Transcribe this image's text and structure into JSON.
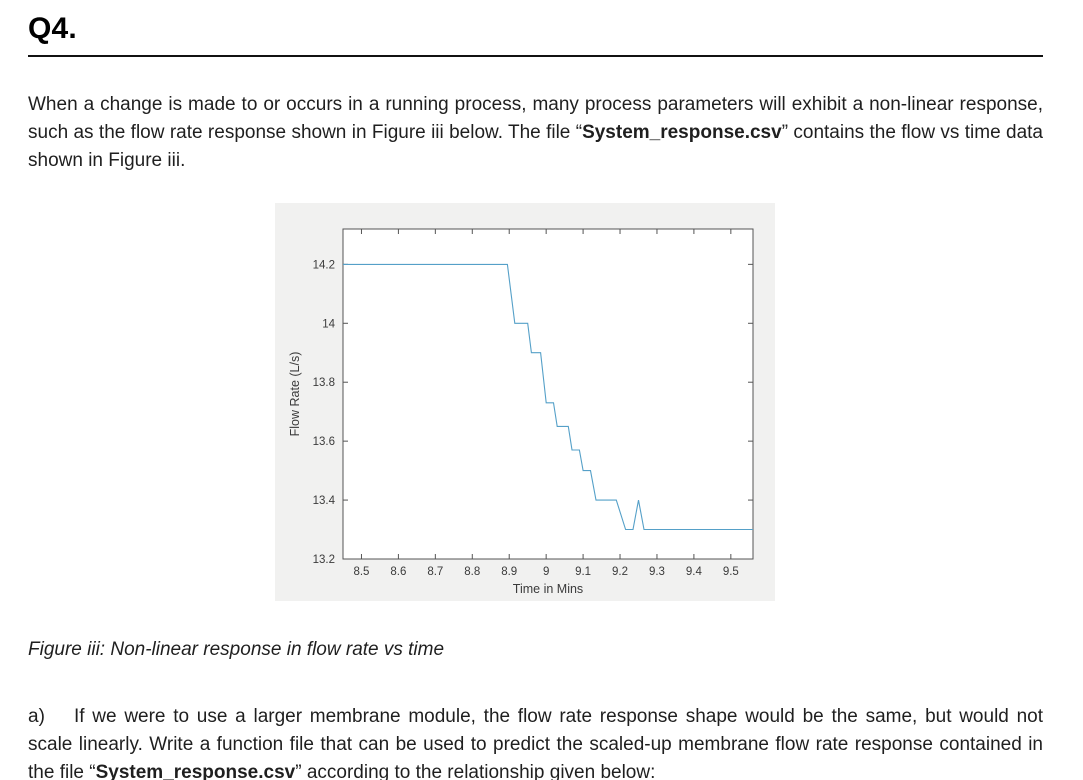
{
  "page": {
    "heading": "Q4.",
    "intro": {
      "seg1": "When a change is made to or occurs in a running process, many process parameters will exhibit a non-linear response, such as the flow rate response shown in Figure iii below. The file “",
      "file": "System_response.csv",
      "seg2": "” contains the flow vs time data shown in Figure iii."
    },
    "caption": "Figure iii: Non-linear response in flow rate vs time",
    "part_a": {
      "label": "a)",
      "seg1": "If we were to use a larger membrane module, the flow rate response shape would be the same, but would not scale linearly. Write a function file that can be used to predict the scaled-up membrane flow rate response contained in the file “",
      "file": "System_response.csv",
      "seg2": "” according to the relationship given below:"
    }
  },
  "chart_data": {
    "type": "line",
    "title": "",
    "xlabel": "Time in Mins",
    "ylabel": "Flow Rate (L/s)",
    "xlim": [
      8.45,
      9.56
    ],
    "ylim": [
      13.2,
      14.32
    ],
    "xticks": [
      8.5,
      8.6,
      8.7,
      8.8,
      8.9,
      9,
      9.1,
      9.2,
      9.3,
      9.4,
      9.5
    ],
    "yticks": [
      13.2,
      13.4,
      13.6,
      13.8,
      14,
      14.2
    ],
    "grid": false,
    "legend": "none",
    "line_color": "#55a0c8",
    "axis_color": "#545454",
    "plot_bg": "#ffffff",
    "figure_bg": "#f1f1f0",
    "series": [
      {
        "name": "flow rate response",
        "points": [
          [
            8.45,
            14.2
          ],
          [
            8.895,
            14.2
          ],
          [
            8.915,
            14.0
          ],
          [
            8.95,
            14.0
          ],
          [
            8.96,
            13.9
          ],
          [
            8.985,
            13.9
          ],
          [
            9.0,
            13.73
          ],
          [
            9.02,
            13.73
          ],
          [
            9.03,
            13.65
          ],
          [
            9.06,
            13.65
          ],
          [
            9.07,
            13.57
          ],
          [
            9.09,
            13.57
          ],
          [
            9.1,
            13.5
          ],
          [
            9.12,
            13.5
          ],
          [
            9.135,
            13.4
          ],
          [
            9.19,
            13.4
          ],
          [
            9.215,
            13.3
          ],
          [
            9.235,
            13.3
          ],
          [
            9.25,
            13.4
          ],
          [
            9.265,
            13.3
          ],
          [
            9.56,
            13.3
          ]
        ]
      }
    ]
  }
}
